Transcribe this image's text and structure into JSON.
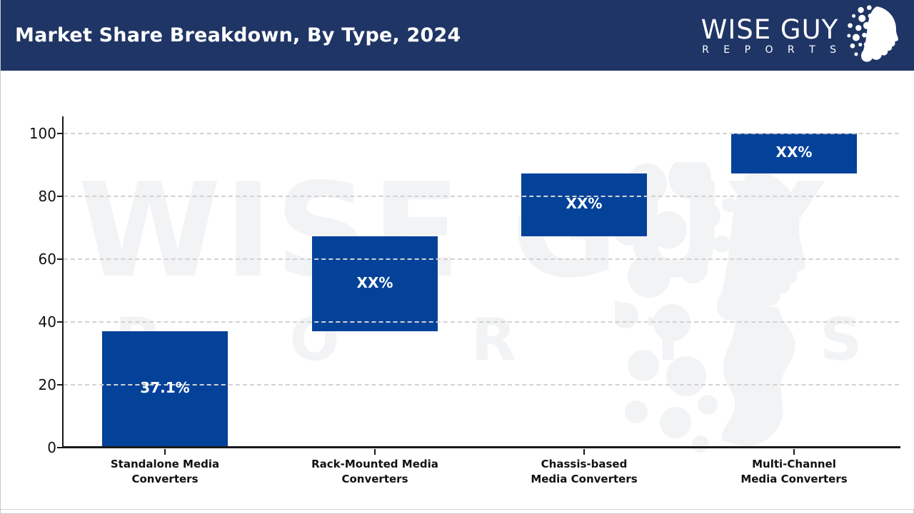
{
  "header": {
    "title": "Market Share Breakdown, By Type, 2024",
    "bg_color": "#1f3565",
    "logo": {
      "name": "WISE GUY",
      "sub": "R E P O R T S"
    }
  },
  "watermark": {
    "line1": "WISE GUY",
    "line2": "P O R T S"
  },
  "chart_data": {
    "type": "bar",
    "variant": "floating-segment market-share breakdown (waterfall-style stacked segments)",
    "title": "Market Share Breakdown, By Type, 2024",
    "xlabel": "",
    "ylabel": "",
    "ylim": [
      0,
      100
    ],
    "yticks": [
      0,
      20,
      40,
      60,
      80,
      100
    ],
    "grid": "horizontal dashed",
    "legend": "none",
    "bar_color": "#04429a",
    "bar_label_color": "#ffffff",
    "categories": [
      {
        "line1": "Standalone Media",
        "line2": "Converters"
      },
      {
        "line1": "Rack-Mounted Media",
        "line2": "Converters"
      },
      {
        "line1": "Chassis-based",
        "line2": "Media Converters"
      },
      {
        "line1": "Multi-Channel",
        "line2": "Media Converters"
      }
    ],
    "segments": [
      {
        "category": "Standalone Media Converters",
        "start": 0,
        "end": 37.1,
        "value": 37.1,
        "label": "37.1%"
      },
      {
        "category": "Rack-Mounted Media Converters",
        "start": 37.1,
        "end": 67.2,
        "value": 30.1,
        "label": "XX%"
      },
      {
        "category": "Chassis-based Media Converters",
        "start": 67.2,
        "end": 87.3,
        "value": 20.1,
        "label": "XX%"
      },
      {
        "category": "Multi-Channel Media Converters",
        "start": 87.3,
        "end": 100,
        "value": 12.7,
        "label": "XX%"
      }
    ]
  }
}
